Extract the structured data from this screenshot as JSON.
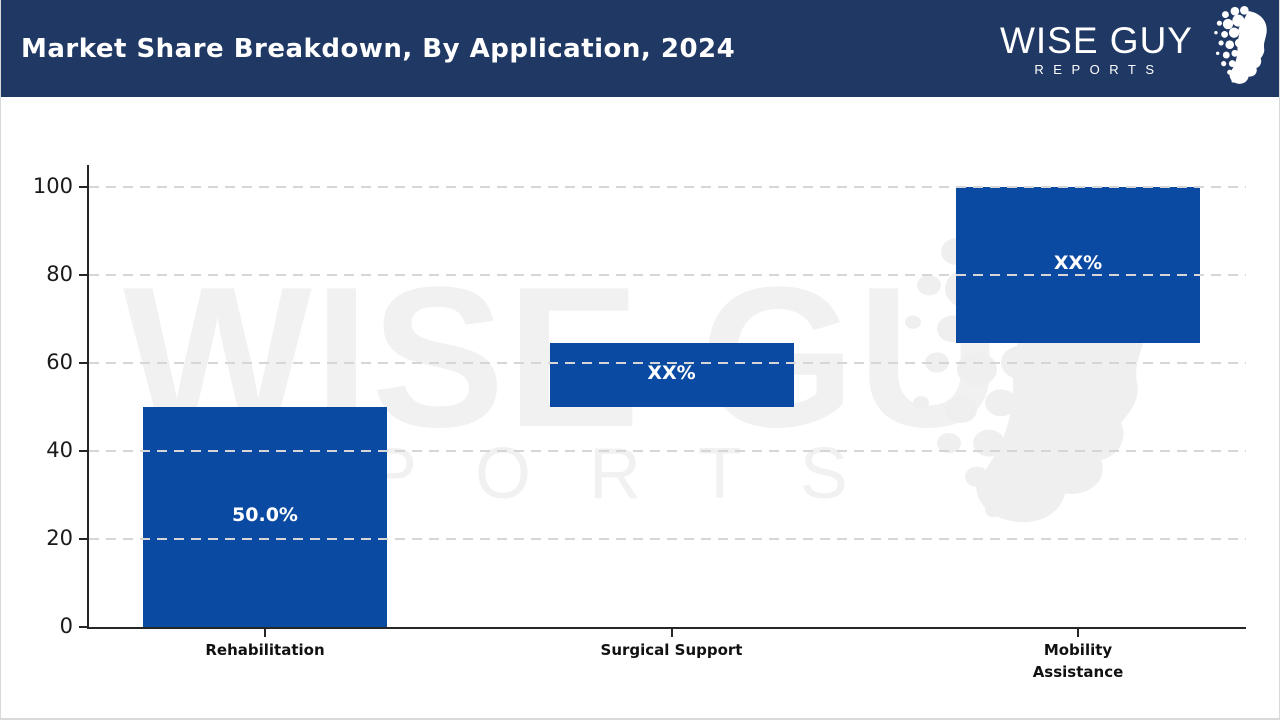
{
  "header": {
    "title": "Market Share Breakdown, By Application, 2024",
    "bg_color": "#203864",
    "text_color": "#ffffff",
    "logo": {
      "name": "WISE GUY REPORTS",
      "line1": "WISE GUY",
      "line2": "REPORTS"
    }
  },
  "watermark": {
    "line1": "WISE GUY",
    "line2": "REPORTS"
  },
  "chart_data": {
    "type": "bar",
    "subtype": "waterfall",
    "title": "Market Share Breakdown, By Application, 2024",
    "categories": [
      "Rehabilitation",
      "Surgical Support",
      "Mobility\nAssistance"
    ],
    "segments": [
      {
        "category": "Rehabilitation",
        "start": 0,
        "end": 50,
        "label": "50.0%"
      },
      {
        "category": "Surgical Support",
        "start": 50,
        "end": 64.5,
        "label": "XX%"
      },
      {
        "category": "Mobility Assistance",
        "start": 64.5,
        "end": 100,
        "label": "XX%"
      }
    ],
    "xlabel": "",
    "ylabel": "",
    "ylim": [
      0,
      100
    ],
    "yticks": [
      "0",
      "20",
      "40",
      "60",
      "80",
      "100"
    ],
    "grid": "horizontal dashed gridlines drawn over bars",
    "legend": "none",
    "bar_color": "#0b4aa2",
    "bar_label_color": "#ffffff",
    "axis_color": "#262626",
    "gridline_color": "#d6d6d6"
  }
}
